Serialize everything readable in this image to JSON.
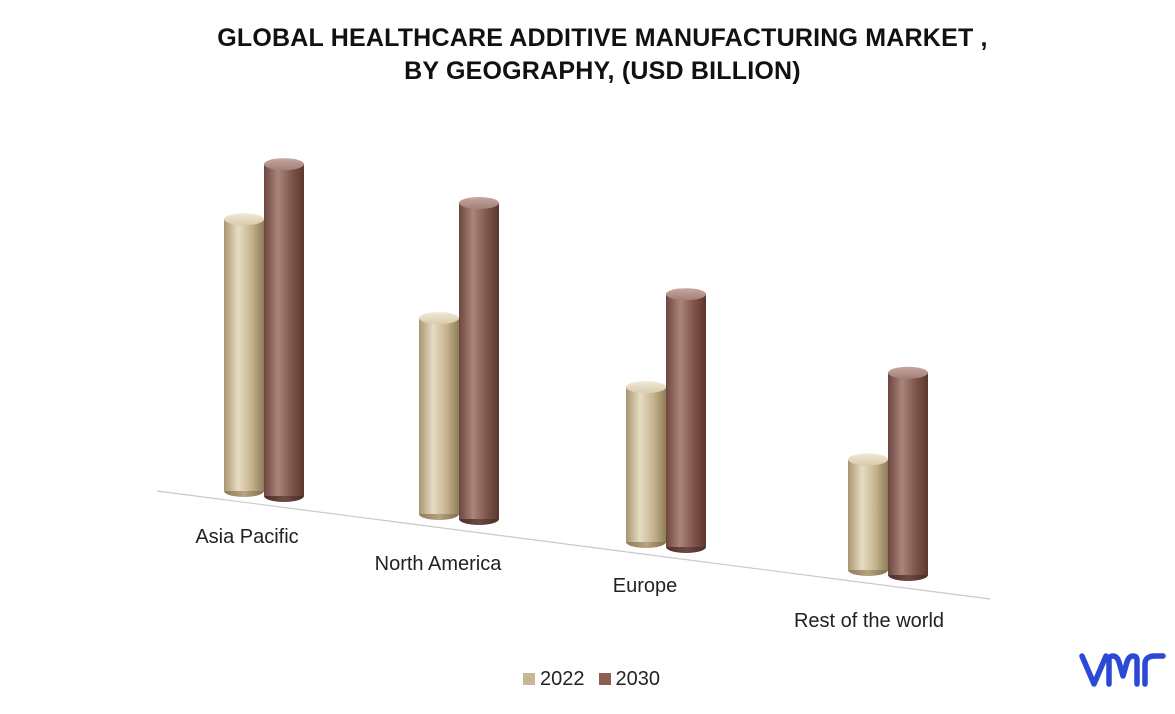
{
  "chart_data": {
    "type": "bar",
    "title_line1": "GLOBAL HEALTHCARE ADDITIVE MANUFACTURING MARKET ,",
    "title_line2": "BY GEOGRAPHY, (USD BILLION)",
    "categories": [
      "Asia Pacific",
      "North America",
      "Europe",
      "Rest of the world"
    ],
    "series": [
      {
        "name": "2022",
        "values": [
          8.6,
          6.2,
          4.9,
          3.5
        ],
        "color": "#c8b795"
      },
      {
        "name": "2030",
        "values": [
          10.5,
          10.0,
          8.0,
          6.4
        ],
        "color": "#8c5f55"
      }
    ],
    "xlabel": "",
    "ylabel": "",
    "grid": false,
    "legend_position": "bottom",
    "style": "3d-cylinder"
  },
  "legend": {
    "items": [
      {
        "label": "2022",
        "color": "#c8b795"
      },
      {
        "label": "2030",
        "color": "#8c5f55"
      }
    ]
  },
  "logo": {
    "icon": "vmr-logo-icon",
    "color": "#2b49d4"
  }
}
